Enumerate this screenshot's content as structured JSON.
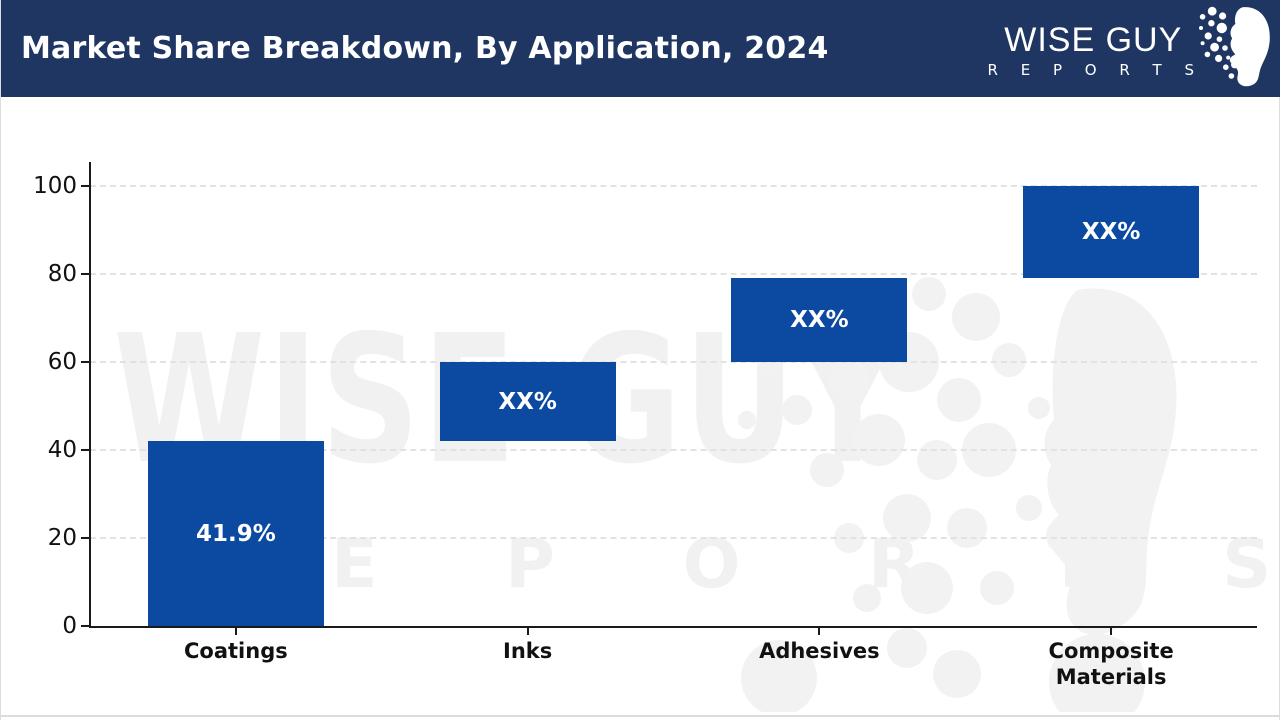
{
  "header": {
    "title": "Market Share Breakdown, By Application, 2024",
    "logo": {
      "line1": "WISE GUY",
      "line2": "R E P O R T S"
    }
  },
  "watermark": {
    "line1": "WISE GUY",
    "line2": "R E P O R T S"
  },
  "colors": {
    "header_bg": "#1f3663",
    "bar": "#0c4aa2",
    "grid": "#e2e2e2",
    "axis": "#1a1a1a",
    "watermark": "#f1f1f1",
    "bar_label": "#ffffff"
  },
  "chart_data": {
    "type": "bar",
    "subtype": "waterfall",
    "title": "Market Share Breakdown, By Application, 2024",
    "xlabel": "",
    "ylabel": "",
    "categories": [
      "Coatings",
      "Inks",
      "Adhesives",
      "Composite Materials"
    ],
    "segments": [
      {
        "category": "Coatings",
        "start": 0,
        "end": 41.9,
        "label": "41.9%"
      },
      {
        "category": "Inks",
        "start": 41.9,
        "end": 60,
        "label": "XX%"
      },
      {
        "category": "Adhesives",
        "start": 60,
        "end": 79,
        "label": "XX%"
      },
      {
        "category": "Composite Materials",
        "start": 79,
        "end": 100,
        "label": "XX%"
      }
    ],
    "y_ticks": [
      0,
      20,
      40,
      60,
      80,
      100
    ],
    "ylim": [
      0,
      105.3
    ],
    "grid": "horizontal-dashed",
    "legend": "none",
    "bar_color": "#0c4aa2",
    "bar_label_color": "#ffffff"
  }
}
